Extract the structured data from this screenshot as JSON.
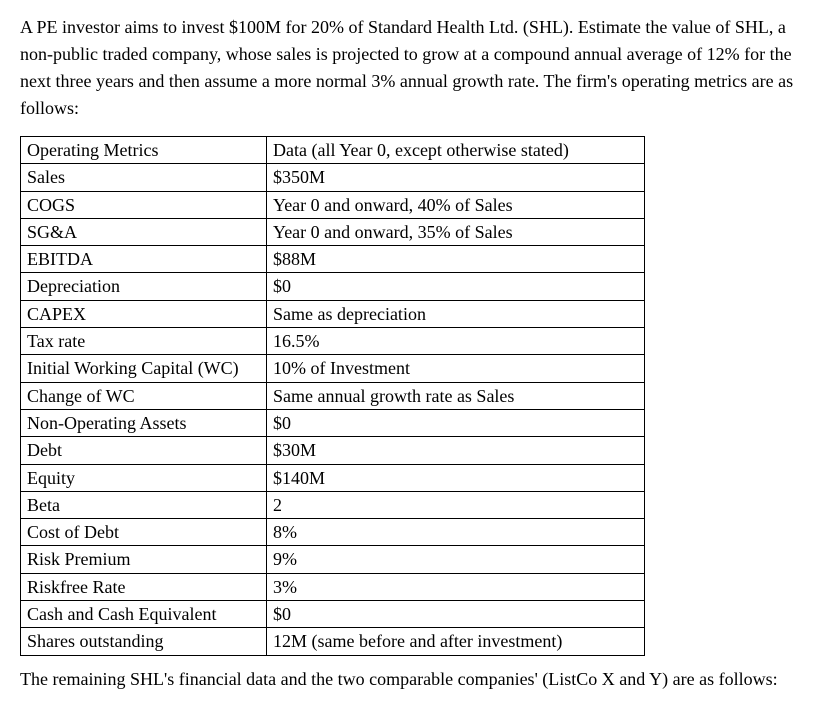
{
  "intro": "A PE investor aims to invest $100M for 20% of Standard Health Ltd. (SHL). Estimate the value of SHL, a non-public traded company, whose sales is projected to grow at a compound annual average of 12% for the next three years and then assume a more normal 3% annual growth rate. The firm's operating metrics are as follows:",
  "table": {
    "columns": [
      "Operating Metrics",
      "Data (all Year 0, except otherwise stated)"
    ],
    "rows": [
      [
        "Sales",
        "$350M"
      ],
      [
        "COGS",
        "Year 0 and onward, 40% of Sales"
      ],
      [
        "SG&A",
        "Year 0 and onward, 35% of Sales"
      ],
      [
        "EBITDA",
        "$88M"
      ],
      [
        "Depreciation",
        "$0"
      ],
      [
        "CAPEX",
        "Same as depreciation"
      ],
      [
        "Tax rate",
        "16.5%"
      ],
      [
        "Initial Working Capital (WC)",
        "10% of Investment"
      ],
      [
        "Change of WC",
        "Same annual growth rate as Sales"
      ],
      [
        "Non-Operating Assets",
        "$0"
      ],
      [
        "Debt",
        "$30M"
      ],
      [
        "Equity",
        "$140M"
      ],
      [
        "Beta",
        "2"
      ],
      [
        "Cost of Debt",
        "8%"
      ],
      [
        "Risk Premium",
        "9%"
      ],
      [
        "Riskfree Rate",
        "3%"
      ],
      [
        "Cash and Cash Equivalent",
        "$0"
      ],
      [
        "Shares outstanding",
        "12M (same before and after investment)"
      ]
    ]
  },
  "footer": "The remaining SHL's financial data and the two comparable companies' (ListCo X and Y) are as follows:"
}
